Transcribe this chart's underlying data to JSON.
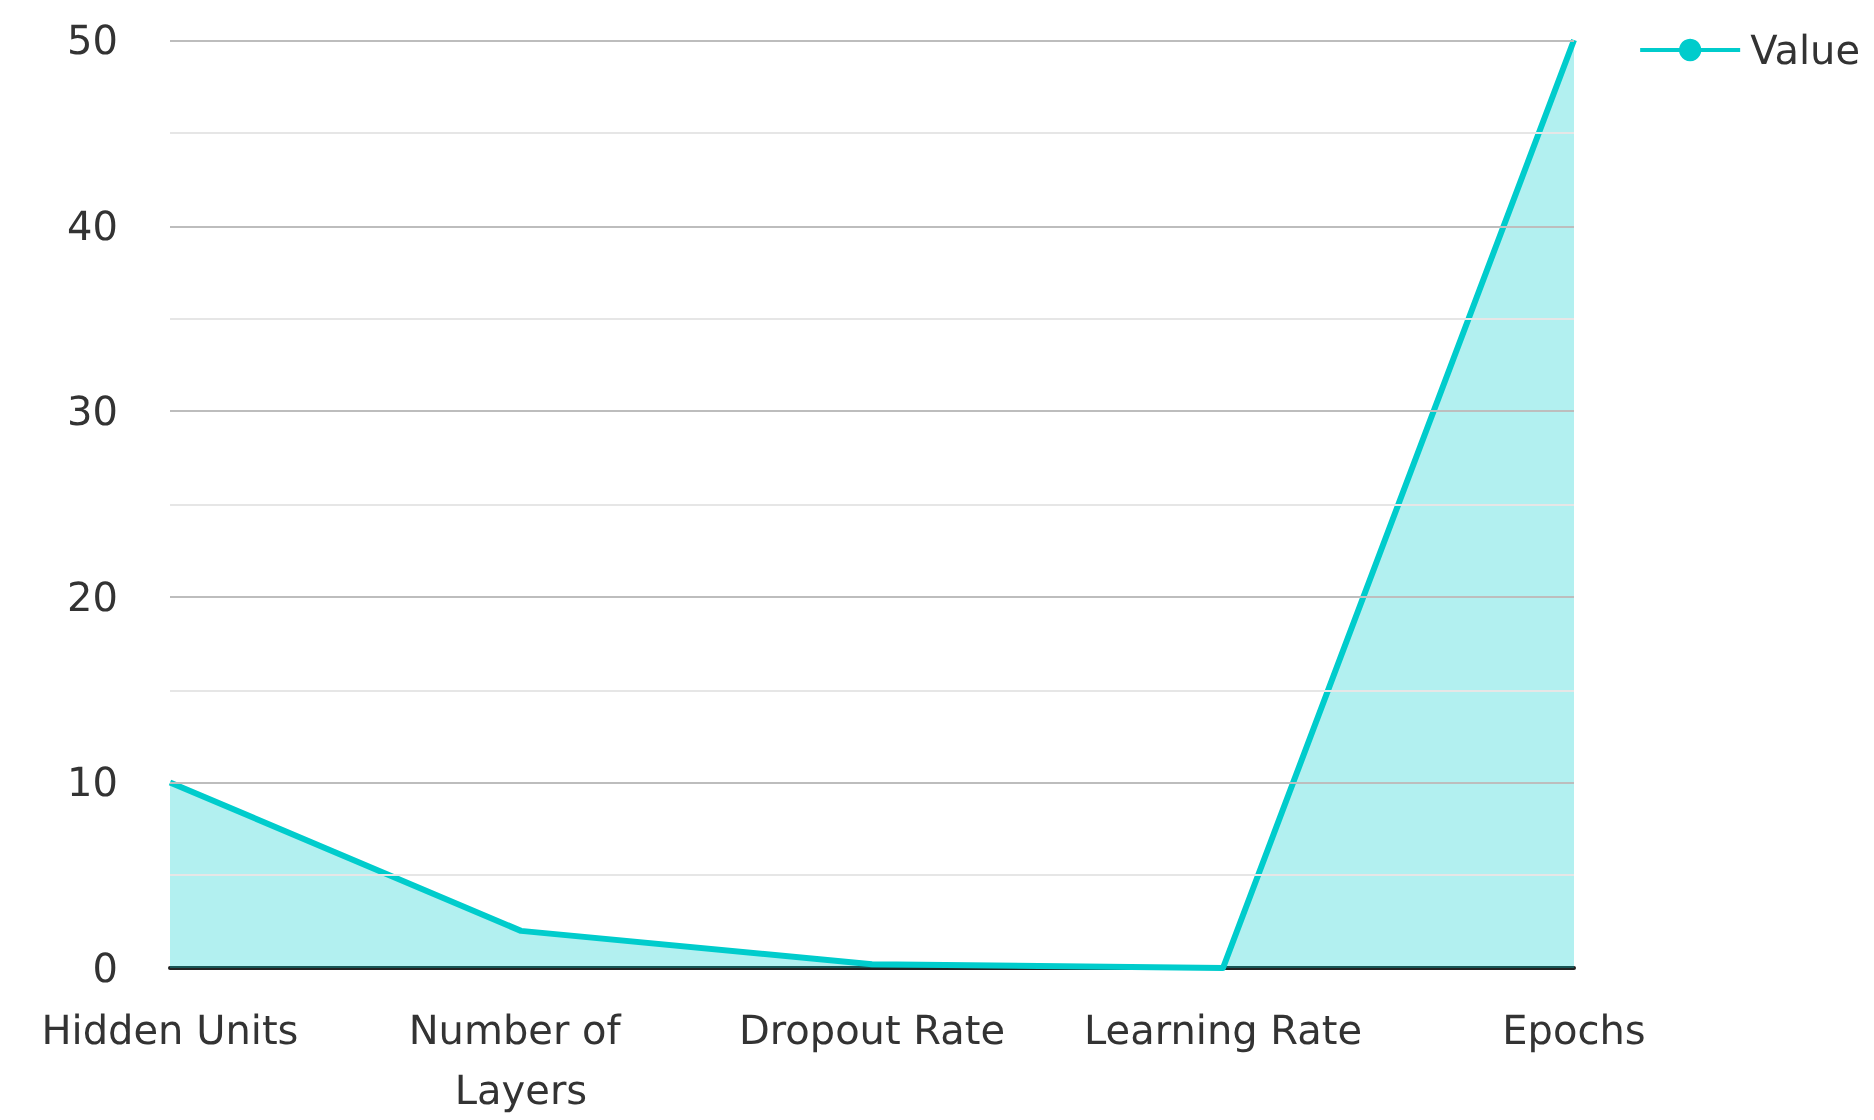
{
  "chart_data": {
    "type": "area",
    "categories": [
      "Hidden Units",
      "Number of Layers",
      "Dropout Rate",
      "Learning Rate",
      "Epochs"
    ],
    "series": [
      {
        "name": "Value",
        "color": "#00cccc",
        "values": [
          10,
          2,
          0.2,
          0,
          50
        ]
      }
    ],
    "ylim": [
      0,
      50
    ],
    "yticks": [
      0,
      {
        "value": 5,
        "label": null
      },
      10,
      {
        "value": 15,
        "label": null
      },
      20,
      {
        "value": 25,
        "label": null
      },
      30,
      {
        "value": 35,
        "label": null
      },
      40,
      {
        "value": 45,
        "label": null
      },
      50
    ],
    "grid": "y",
    "legend": "top right"
  }
}
